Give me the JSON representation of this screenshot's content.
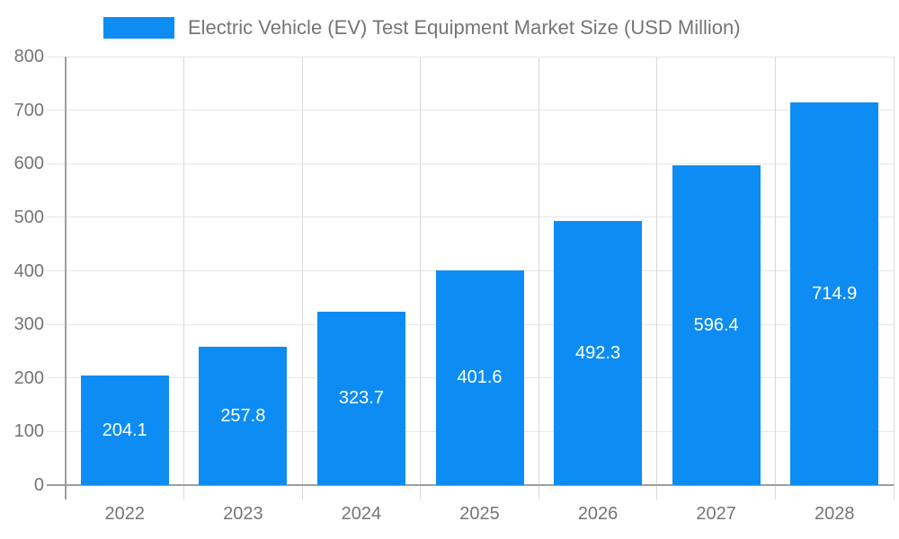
{
  "chart_data": {
    "type": "bar",
    "title": "Electric Vehicle (EV) Test Equipment Market Size (USD Million)",
    "categories": [
      "2022",
      "2023",
      "2024",
      "2025",
      "2026",
      "2027",
      "2028"
    ],
    "series": [
      {
        "name": "Electric Vehicle (EV) Test Equipment Market Size (USD Million)",
        "values": [
          204.1,
          257.8,
          323.7,
          401.6,
          492.3,
          596.4,
          714.9
        ]
      }
    ],
    "value_labels": [
      "204.1",
      "257.8",
      "323.7",
      "401.6",
      "492.3",
      "596.4",
      "714.9"
    ],
    "xlabel": "",
    "ylabel": "",
    "ylim": [
      0,
      800
    ],
    "yticks": [
      0,
      100,
      200,
      300,
      400,
      500,
      600,
      700,
      800
    ],
    "grid": true,
    "legend_position": "top",
    "colors": {
      "bar": "#0d8df3",
      "axis_line": "#9e9e9e",
      "gridline": "#e6e6e6",
      "tick": "#d9d9d9",
      "label_text": "#757575",
      "value_label_text": "#ffffff",
      "background": "#ffffff"
    }
  }
}
